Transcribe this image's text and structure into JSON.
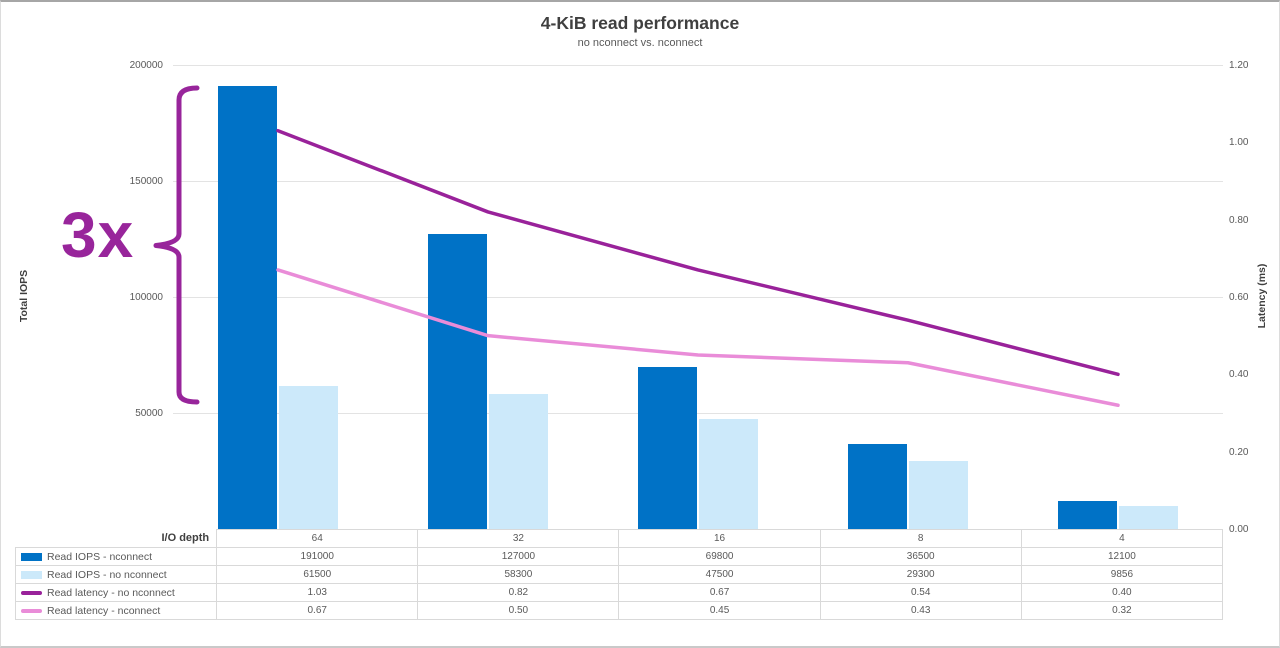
{
  "header": {
    "title": "4-KiB read performance",
    "subtitle": "no nconnect vs. nconnect"
  },
  "annotation": {
    "label": "3x",
    "color": "#98259b"
  },
  "chart_data": {
    "type": "combo-bar-line",
    "title": "4-KiB read performance",
    "subtitle": "no nconnect vs. nconnect",
    "x_field": "I/O depth",
    "categories": [
      "64",
      "32",
      "16",
      "8",
      "4"
    ],
    "series": [
      {
        "name": "Read IOPS - nconnect",
        "type": "bar",
        "axis": "left",
        "color": "#0072c6",
        "values": [
          191000,
          127000,
          69800,
          36500,
          12100
        ],
        "display": [
          "191000",
          "127000",
          "69800",
          "36500",
          "12100"
        ]
      },
      {
        "name": "Read IOPS - no nconnect",
        "type": "bar",
        "axis": "left",
        "color": "#cce9fa",
        "values": [
          61500,
          58300,
          47500,
          29300,
          9856
        ],
        "display": [
          "61500",
          "58300",
          "47500",
          "29300",
          "9856"
        ]
      },
      {
        "name": "Read latency - no nconnect",
        "type": "line",
        "axis": "right",
        "color": "#99229a",
        "values": [
          1.03,
          0.82,
          0.67,
          0.54,
          0.4
        ],
        "display": [
          "1.03",
          "0.82",
          "0.67",
          "0.54",
          "0.40"
        ]
      },
      {
        "name": "Read latency - nconnect",
        "type": "line",
        "axis": "right",
        "color": "#e98cd8",
        "values": [
          0.67,
          0.5,
          0.45,
          0.43,
          0.32
        ],
        "display": [
          "0.67",
          "0.50",
          "0.45",
          "0.43",
          "0.32"
        ]
      }
    ],
    "left_axis": {
      "label": "Total IOPS",
      "range": [
        0,
        200000
      ],
      "ticks": [
        "200000",
        "150000",
        "100000",
        "50000"
      ]
    },
    "right_axis": {
      "label": "Latency (ms)",
      "range": [
        0,
        1.2
      ],
      "ticks": [
        "1.20",
        "1.00",
        "0.80",
        "0.60",
        "0.40",
        "0.20",
        "0.00"
      ]
    },
    "grid": "horizontal",
    "legend_position": "table-left-column"
  }
}
